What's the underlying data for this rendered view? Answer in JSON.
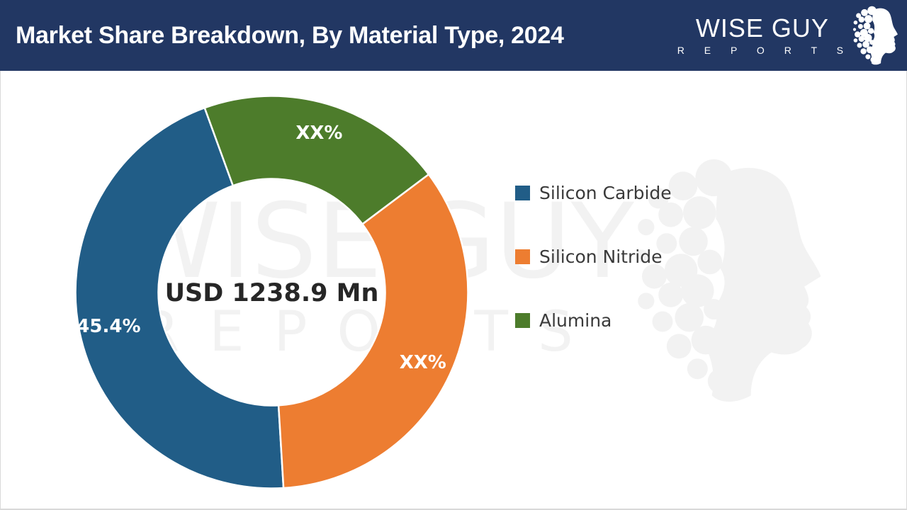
{
  "header": {
    "title": "Market Share Breakdown, By Material Type, 2024",
    "logo": {
      "wordmark": "WISE GUY",
      "subtext": "R E P O R T S"
    }
  },
  "watermark": {
    "line1": "WISE GUY",
    "line2": "REPORTS"
  },
  "chart_data": {
    "type": "pie",
    "subtype": "donut",
    "title": "Market Share Breakdown, By Material Type, 2024",
    "center_label": "USD 1238.9 Mn",
    "start_angle_deg": 110,
    "direction": "counterclockwise",
    "legend_position": "right",
    "segments": [
      {
        "name": "Silicon Carbide",
        "value_pct": 45.4,
        "display_label": "45.4%",
        "color": "#215d87"
      },
      {
        "name": "Silicon Nitride",
        "value_pct": 34.3,
        "display_label": "XX%",
        "color": "#ed7d31"
      },
      {
        "name": "Alumina",
        "value_pct": 20.3,
        "display_label": "XX%",
        "color": "#4d7c2b"
      }
    ]
  },
  "colors": {
    "header_bg": "#223763",
    "title_text": "#ffffff",
    "watermark": "#f2f2f2",
    "center_text": "#262626",
    "legend_text": "#3a3a3a",
    "border": "#d9d9d9"
  }
}
